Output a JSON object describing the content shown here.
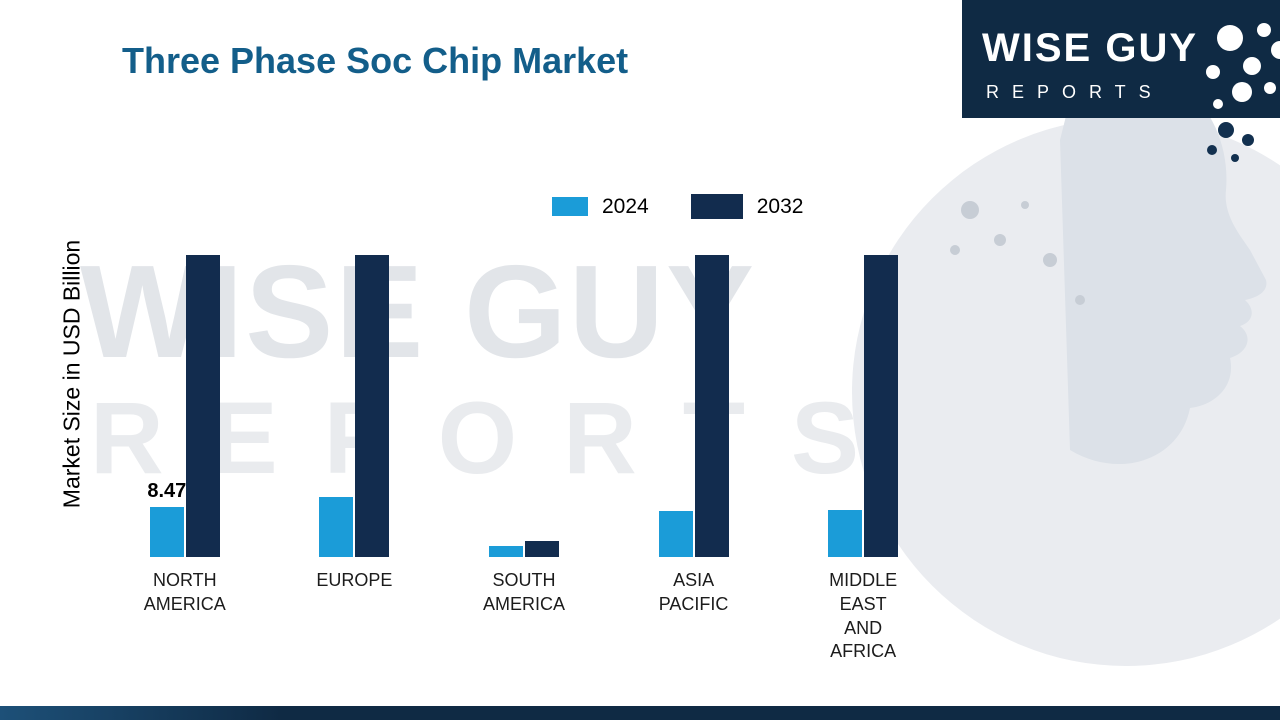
{
  "header": {
    "title": "Three Phase Soc Chip Market"
  },
  "logo": {
    "name": "WISE GUY",
    "subtitle": "REPORTS"
  },
  "watermark": {
    "line1": "WISE GUY",
    "line2": "REPORTS"
  },
  "colors": {
    "title_blue": "#135e8a",
    "bar_2024": "#1b9cd8",
    "bar_2032": "#122c4e",
    "navy": "#0f2a44",
    "background_gray": "#eaecf0"
  },
  "chart_data": {
    "type": "bar",
    "title": "Three Phase Soc Chip Market",
    "xlabel": "",
    "ylabel": "Market Size in USD Billion",
    "categories": [
      "NORTH AMERICA",
      "EUROPE",
      "SOUTH AMERICA",
      "ASIA PACIFIC",
      "MIDDLE EAST AND AFRICA"
    ],
    "series": [
      {
        "name": "2024",
        "color": "#1b9cd8",
        "values": [
          8.47,
          10.2,
          1.9,
          7.8,
          8.0
        ],
        "labels": [
          "8.47",
          "",
          "",
          "",
          ""
        ]
      },
      {
        "name": "2032",
        "color": "#122c4e",
        "values": [
          51.5,
          51.5,
          2.7,
          51.5,
          51.5
        ],
        "labels": [
          "",
          "",
          "",
          "",
          ""
        ]
      }
    ],
    "ylim": [
      0,
      52
    ],
    "grid": false,
    "legend_position": "top"
  }
}
